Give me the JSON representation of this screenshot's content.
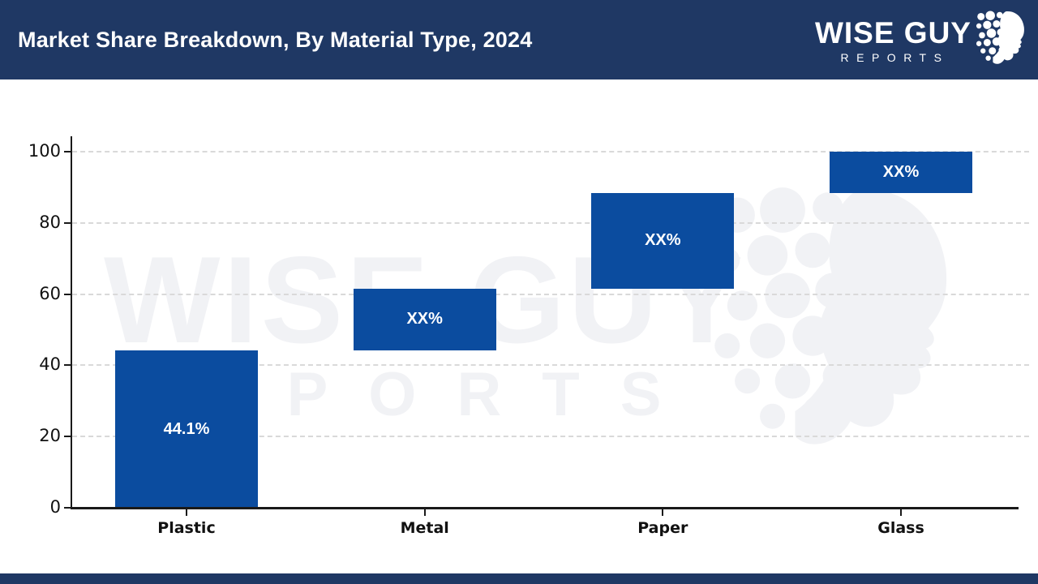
{
  "header": {
    "title": "Market Share Breakdown, By Material Type, 2024",
    "brand_top": "WISE GUY",
    "brand_bottom": "REPORTS"
  },
  "watermark": {
    "line1": "WISE GUY",
    "line2": "REPORTS"
  },
  "chart_data": {
    "type": "bar",
    "subtype": "waterfall",
    "title": "Market Share Breakdown, By Material Type, 2024",
    "categories": [
      "Plastic",
      "Metal",
      "Paper",
      "Glass"
    ],
    "bars": [
      {
        "category": "Plastic",
        "start": 0,
        "end": 44.1,
        "value": 44.1,
        "label": "44.1%"
      },
      {
        "category": "Metal",
        "start": 44.1,
        "end": 61.6,
        "value": 17.5,
        "label": "XX%"
      },
      {
        "category": "Paper",
        "start": 61.6,
        "end": 88.3,
        "value": 26.7,
        "label": "XX%"
      },
      {
        "category": "Glass",
        "start": 88.3,
        "end": 100,
        "value": 11.7,
        "label": "XX%"
      }
    ],
    "xlabel": "",
    "ylabel": "",
    "ylim": [
      0,
      100
    ],
    "yticks": [
      0,
      20,
      40,
      60,
      80,
      100
    ],
    "grid": "horizontal-dashed",
    "legend": "none",
    "bar_color": "#0b4c9f",
    "bar_label_color": "#ffffff"
  },
  "colors": {
    "header_bg": "#1f3864",
    "footer_bg": "#1f3864",
    "bar": "#0b4c9f",
    "grid": "#d9d9d9",
    "axis": "#1a1a1a",
    "watermark": "#f1f2f5"
  }
}
